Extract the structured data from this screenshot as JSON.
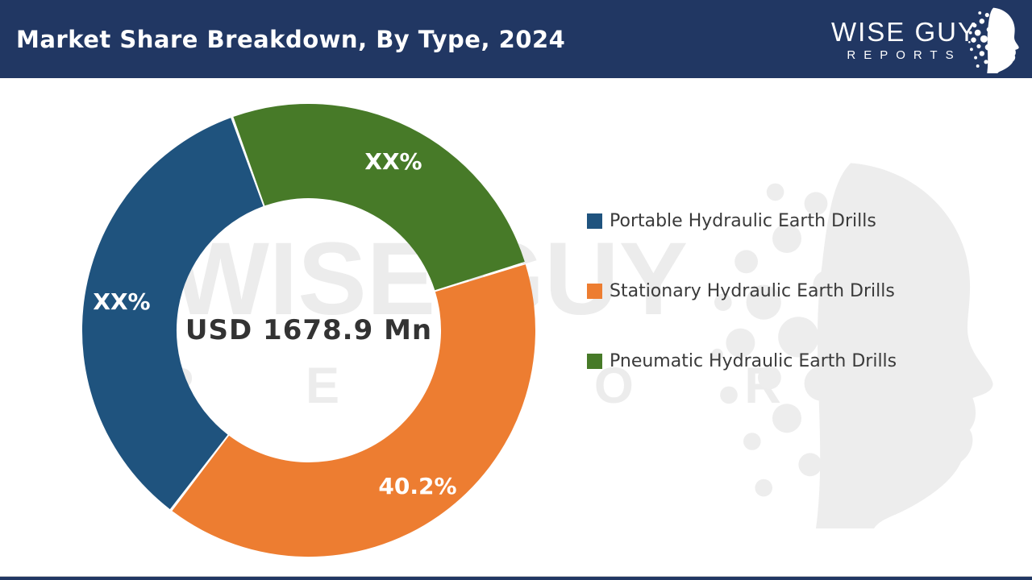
{
  "header": {
    "title": "Market Share Breakdown, By Type, 2024",
    "bg_color": "#213763",
    "logo": {
      "line1": "WISE GUY",
      "line2": "REPORTS"
    }
  },
  "chart_data": {
    "type": "pie",
    "subtype": "donut",
    "title": "Market Share Breakdown, By Type, 2024",
    "center_label": "USD 1678.9 Mn",
    "legend_position": "right",
    "start_angle_deg": 109.8,
    "segments": [
      {
        "name": "Pneumatic Hydraulic Earth Drills",
        "value_pct": 25.7,
        "label": "XX%",
        "color": "#477A28"
      },
      {
        "name": "Stationary Hydraulic Earth Drills",
        "value_pct": 40.2,
        "label": "40.2%",
        "color": "#ED7D31"
      },
      {
        "name": "Portable Hydraulic Earth Drills",
        "value_pct": 34.1,
        "label": "XX%",
        "color": "#1F537E"
      }
    ]
  },
  "legend": {
    "items": [
      {
        "label": "Portable Hydraulic Earth Drills",
        "color": "#1F537E"
      },
      {
        "label": "Stationary Hydraulic Earth Drills",
        "color": "#ED7D31"
      },
      {
        "label": "Pneumatic Hydraulic Earth Drills",
        "color": "#477A28"
      }
    ]
  },
  "watermark": {
    "line1": "WISE GUY",
    "line2": "R E P O R T S"
  }
}
